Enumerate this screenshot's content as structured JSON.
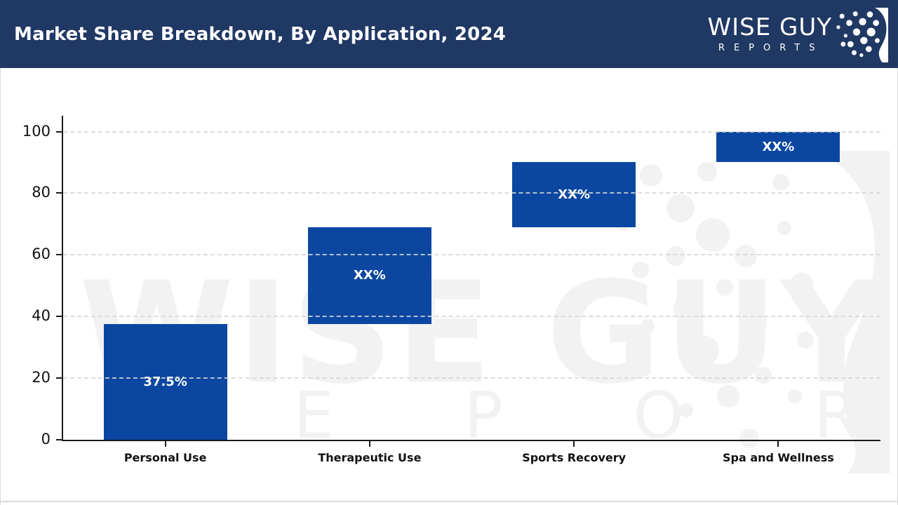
{
  "header": {
    "title": "Market Share Breakdown, By Application, 2024",
    "bg_color": "#1f3864"
  },
  "logo": {
    "wordmark": "WISE GUY",
    "subtitle": "REPORTS"
  },
  "watermark": {
    "line1": "WISE GUY",
    "line2": "R E P O R T S"
  },
  "chart_data": {
    "type": "bar",
    "subtype": "waterfall",
    "title": "Market Share Breakdown, By Application, 2024",
    "categories": [
      "Personal Use",
      "Therapeutic Use",
      "Sports Recovery",
      "Spa and Wellness"
    ],
    "segments": [
      {
        "category": "Personal Use",
        "start": 0,
        "end": 37.5,
        "label": "37.5%"
      },
      {
        "category": "Therapeutic Use",
        "start": 37.5,
        "end": 69,
        "label": "XX%"
      },
      {
        "category": "Sports Recovery",
        "start": 69,
        "end": 90,
        "label": "XX%"
      },
      {
        "category": "Spa and Wellness",
        "start": 90,
        "end": 100,
        "label": "XX%"
      }
    ],
    "y_ticks": [
      0,
      20,
      40,
      60,
      80,
      100
    ],
    "ylim": [
      0,
      105
    ],
    "xlabel": "",
    "ylabel": "",
    "legend": "none",
    "grid": "horizontal-dashed",
    "bar_color": "#0b47a1",
    "bar_label_color": "#ffffff",
    "axis_color": "#1a1a1a"
  }
}
